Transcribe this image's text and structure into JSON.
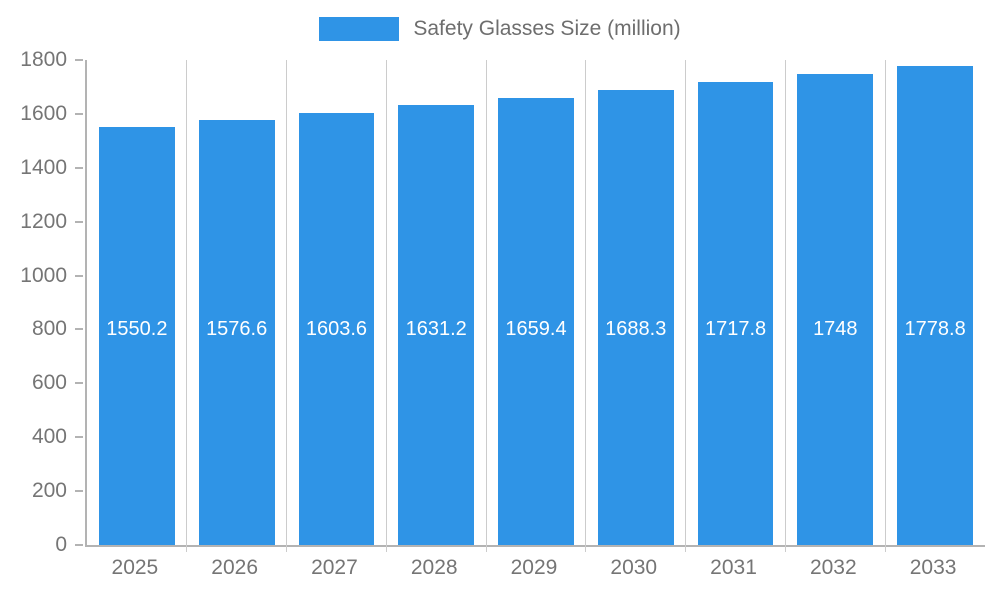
{
  "legend": {
    "label": "Safety Glasses Size (million)"
  },
  "colors": {
    "bar": "#2f94e6",
    "axis_text": "#757575",
    "gridline": "#cccccc",
    "axis_line": "#b3b3b3",
    "value_label": "#ffffff"
  },
  "chart_data": {
    "type": "bar",
    "title": "",
    "legend": "Safety Glasses Size (million)",
    "legend_position": "top-center",
    "categories": [
      "2025",
      "2026",
      "2027",
      "2028",
      "2029",
      "2030",
      "2031",
      "2032",
      "2033"
    ],
    "values": [
      1550.2,
      1576.6,
      1603.6,
      1631.2,
      1659.4,
      1688.3,
      1717.8,
      1748,
      1778.8
    ],
    "value_labels": [
      "1550.2",
      "1576.6",
      "1603.6",
      "1631.2",
      "1659.4",
      "1688.3",
      "1717.8",
      "1748",
      "1778.8"
    ],
    "xlabel": "",
    "ylabel": "",
    "ylim": [
      0,
      1800
    ],
    "yticks": [
      0,
      200,
      400,
      600,
      800,
      1000,
      1200,
      1400,
      1600,
      1800
    ],
    "grid": "vertical category gridlines only"
  }
}
